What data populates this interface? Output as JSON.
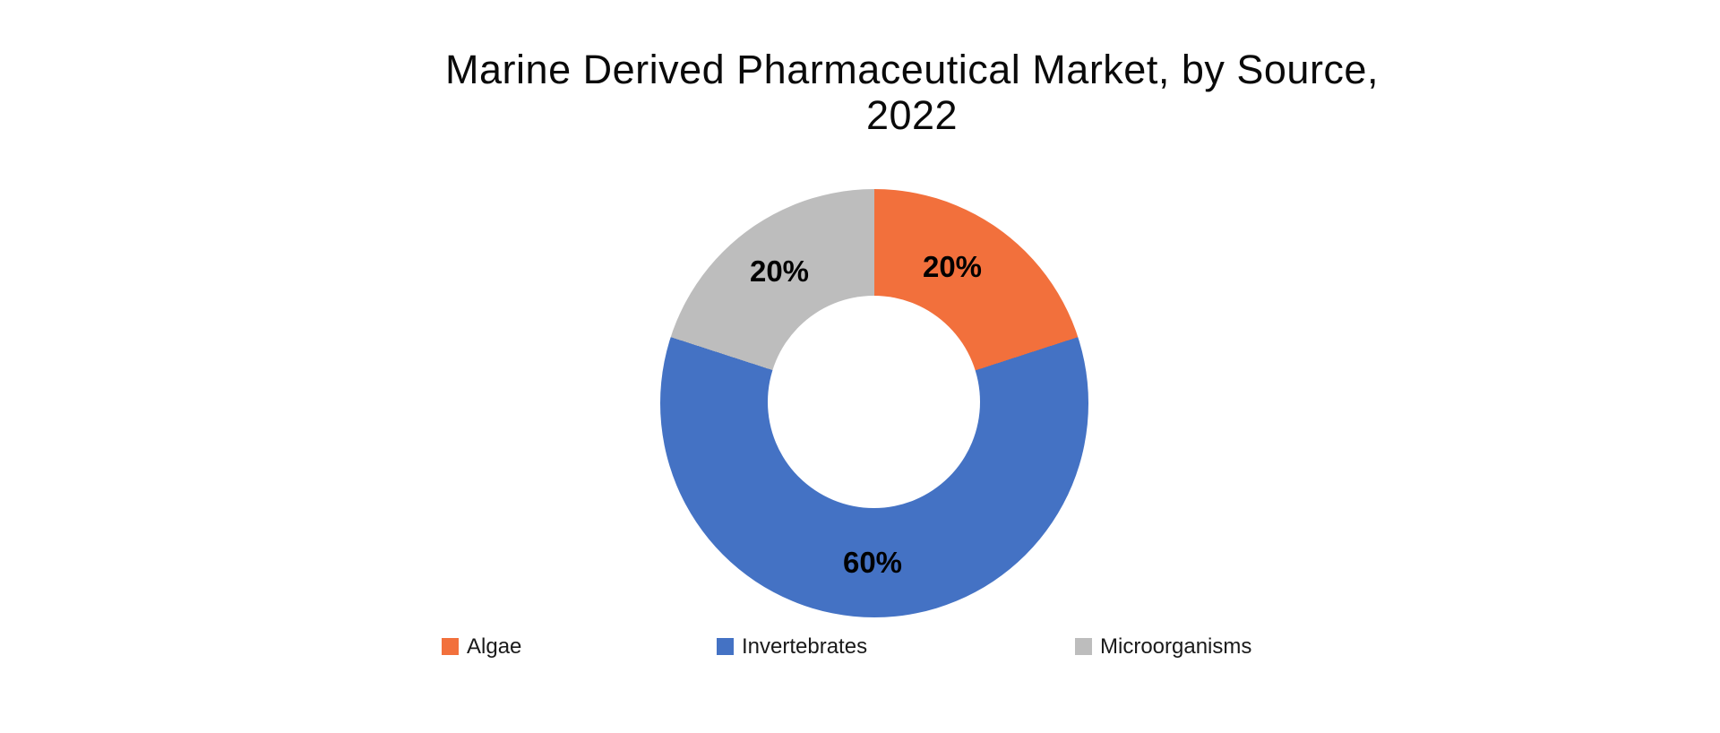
{
  "title": {
    "line1": "Marine Derived Pharmaceutical Market, by Source,",
    "line2": "2022",
    "full": "Marine Derived Pharmaceutical Market, by Source, 2022"
  },
  "chart_data": {
    "type": "pie",
    "subtype": "donut",
    "title": "Marine Derived Pharmaceutical Market, by Source, 2022",
    "categories": [
      "Algae",
      "Invertebrates",
      "Microorganisms"
    ],
    "values": [
      20,
      60,
      20
    ],
    "unit": "%",
    "labels": [
      "20%",
      "60%",
      "20%"
    ],
    "colors": [
      "#F2703C",
      "#4472C4",
      "#BDBDBD"
    ],
    "start_angle_deg": 0,
    "direction": "clockwise",
    "inner_radius_ratio": 0.5,
    "legend_position": "bottom",
    "background": "#FFFFFF",
    "label_color": "#000000"
  },
  "legend": {
    "items": [
      {
        "label": "Algae",
        "color": "#F2703C"
      },
      {
        "label": "Invertebrates",
        "color": "#4472C4"
      },
      {
        "label": "Microorganisms",
        "color": "#BDBDBD"
      }
    ]
  }
}
